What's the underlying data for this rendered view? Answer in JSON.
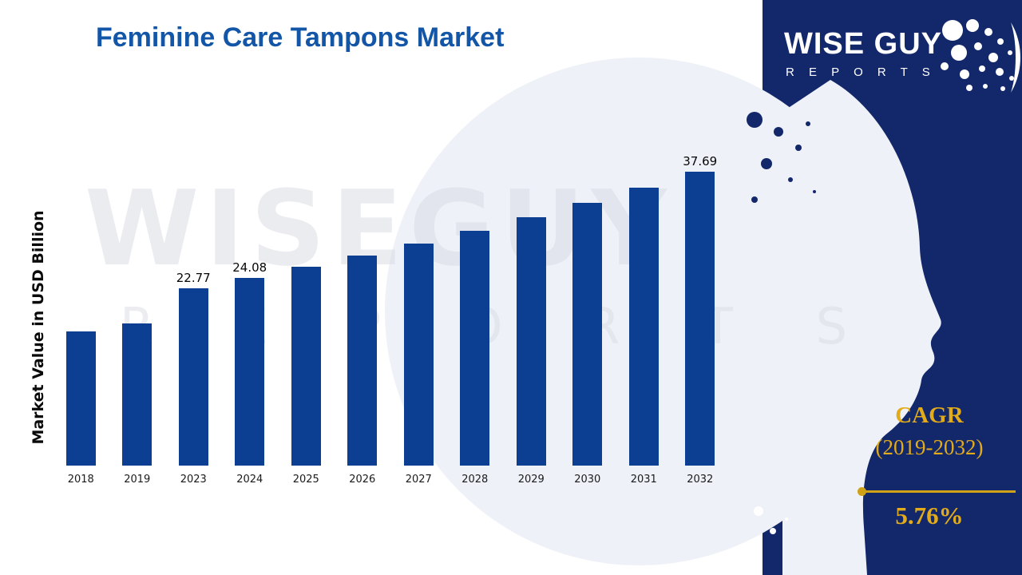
{
  "header": {
    "title": "Feminine Care Tampons Market"
  },
  "watermark": {
    "line1": "WISEGUY",
    "line2": "R E P O R T S"
  },
  "logo": {
    "name": "WISE GUY",
    "subtitle": "R E P O R T S"
  },
  "sidebar": {
    "cagr_label": "CAGR",
    "cagr_range": "(2019-2032)",
    "cagr_value": "5.76%",
    "panel_color": "#13276b",
    "accent_color": "#e2ab19"
  },
  "chart_data": {
    "type": "bar",
    "title": "Feminine Care Tampons Market",
    "xlabel": "",
    "ylabel": "Market Value in USD Billion",
    "categories": [
      "2018",
      "2019",
      "2023",
      "2024",
      "2025",
      "2026",
      "2027",
      "2028",
      "2029",
      "2030",
      "2031",
      "2032"
    ],
    "values": [
      17.21,
      18.2,
      22.77,
      24.08,
      25.47,
      26.93,
      28.48,
      30.12,
      31.86,
      33.69,
      35.63,
      37.69
    ],
    "shown_value_labels": {
      "2023": "22.77",
      "2024": "24.08",
      "2032": "37.69"
    },
    "ylim": [
      0,
      40
    ],
    "grid": false,
    "legend": false,
    "bar_color": "#0c3f92"
  }
}
